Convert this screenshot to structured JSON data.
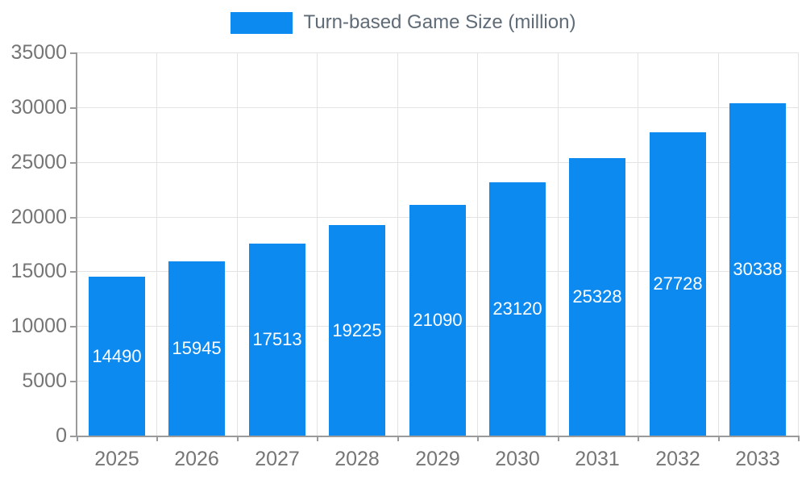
{
  "chart_data": {
    "type": "bar",
    "title": "Turn-based Game Size (million)",
    "legend": {
      "label": "Turn-based Game Size (million)",
      "position": "top"
    },
    "categories": [
      "2025",
      "2026",
      "2027",
      "2028",
      "2029",
      "2030",
      "2031",
      "2032",
      "2033"
    ],
    "values": [
      14490,
      15945,
      17513,
      19225,
      21090,
      23120,
      25328,
      27728,
      30338
    ],
    "xlabel": "",
    "ylabel": "",
    "ylim": [
      0,
      35000
    ],
    "yticks": [
      0,
      5000,
      10000,
      15000,
      20000,
      25000,
      30000,
      35000
    ],
    "grid": true,
    "value_labels": "inside-center",
    "colors": {
      "bar": "#0d8af0",
      "grid": "#e3e3e3",
      "axis_line": "#9a9a9a",
      "axis_text": "#757575",
      "legend_text": "#5f6b76",
      "value_text": "#ffffff",
      "background": "#ffffff"
    }
  }
}
